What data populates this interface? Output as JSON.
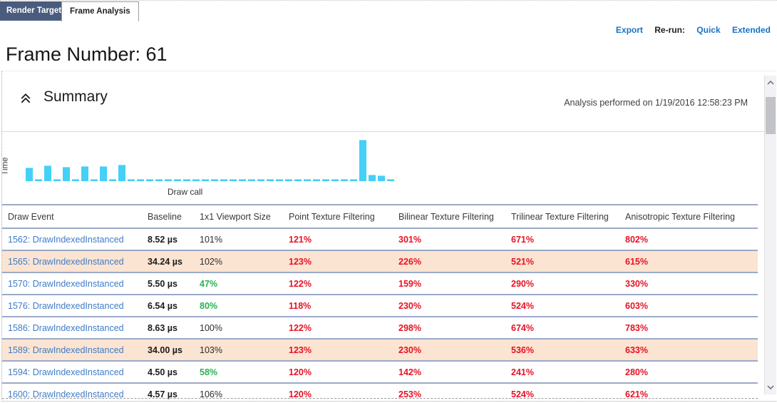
{
  "tabs": {
    "render_target": "Render Target",
    "frame_analysis": "Frame Analysis"
  },
  "toolbar": {
    "export": "Export",
    "rerun": "Re-run:",
    "quick": "Quick",
    "extended": "Extended"
  },
  "frame_heading": "Frame Number: 61",
  "summary": {
    "title": "Summary",
    "analysis_info": "Analysis performed on 1/19/2016 12:58:23 PM"
  },
  "chart_data": {
    "type": "bar",
    "title": "",
    "xlabel": "Draw call",
    "ylabel": "Time",
    "description": "Relative GPU time per draw call; axes unlabeled, values are approximate bar heights in relative time units",
    "bar_color": "#44d0f7",
    "values": [
      19,
      3,
      22,
      3,
      20,
      3,
      21,
      3,
      21,
      3,
      23,
      3,
      3,
      3,
      3,
      3,
      3,
      3,
      3,
      3,
      3,
      3,
      3,
      3,
      3,
      3,
      3,
      3,
      3,
      3,
      3,
      3,
      3,
      3,
      3,
      3,
      58,
      9,
      8,
      3
    ]
  },
  "table": {
    "columns": [
      "Draw Event",
      "Baseline",
      "1x1 Viewport Size",
      "Point Texture Filtering",
      "Bilinear Texture Filtering",
      "Trilinear Texture Filtering",
      "Anisotropic Texture Filtering"
    ],
    "rows": [
      {
        "event": "1562: DrawIndexedInstanced",
        "baseline": "8.52 µs",
        "viewport": "101%",
        "viewport_status": "neutral",
        "point": "121%",
        "bilinear": "301%",
        "trilinear": "671%",
        "anisotropic": "802%",
        "highlight": false
      },
      {
        "event": "1565: DrawIndexedInstanced",
        "baseline": "34.24 µs",
        "viewport": "102%",
        "viewport_status": "neutral",
        "point": "123%",
        "bilinear": "226%",
        "trilinear": "521%",
        "anisotropic": "615%",
        "highlight": true
      },
      {
        "event": "1570: DrawIndexedInstanced",
        "baseline": "5.50 µs",
        "viewport": "47%",
        "viewport_status": "good",
        "point": "122%",
        "bilinear": "159%",
        "trilinear": "290%",
        "anisotropic": "330%",
        "highlight": false
      },
      {
        "event": "1576: DrawIndexedInstanced",
        "baseline": "6.54 µs",
        "viewport": "80%",
        "viewport_status": "good",
        "point": "118%",
        "bilinear": "230%",
        "trilinear": "524%",
        "anisotropic": "603%",
        "highlight": false
      },
      {
        "event": "1586: DrawIndexedInstanced",
        "baseline": "8.63 µs",
        "viewport": "100%",
        "viewport_status": "neutral",
        "point": "122%",
        "bilinear": "298%",
        "trilinear": "674%",
        "anisotropic": "783%",
        "highlight": false
      },
      {
        "event": "1589: DrawIndexedInstanced",
        "baseline": "34.00 µs",
        "viewport": "103%",
        "viewport_status": "neutral",
        "point": "123%",
        "bilinear": "230%",
        "trilinear": "536%",
        "anisotropic": "633%",
        "highlight": true
      },
      {
        "event": "1594: DrawIndexedInstanced",
        "baseline": "4.50 µs",
        "viewport": "58%",
        "viewport_status": "good",
        "point": "120%",
        "bilinear": "142%",
        "trilinear": "241%",
        "anisotropic": "280%",
        "highlight": false
      },
      {
        "event": "1600: DrawIndexedInstanced",
        "baseline": "4.57 µs",
        "viewport": "106%",
        "viewport_status": "neutral",
        "point": "120%",
        "bilinear": "253%",
        "trilinear": "524%",
        "anisotropic": "621%",
        "highlight": false
      }
    ]
  },
  "icons": {
    "collapse": "double-chevron-up",
    "scroll_up": "chevron-up",
    "scroll_down": "chevron-down"
  },
  "colors": {
    "accent_bar": "#44d0f7",
    "bad_percent": "#e81123",
    "good_percent": "#27b34f",
    "highlight_row": "#fce4d2",
    "row_divider": "#9aaac7",
    "link_blue": "#1673c5",
    "event_link_blue": "#3e7cc7",
    "inactive_tab_bg": "#4a5c7e"
  }
}
